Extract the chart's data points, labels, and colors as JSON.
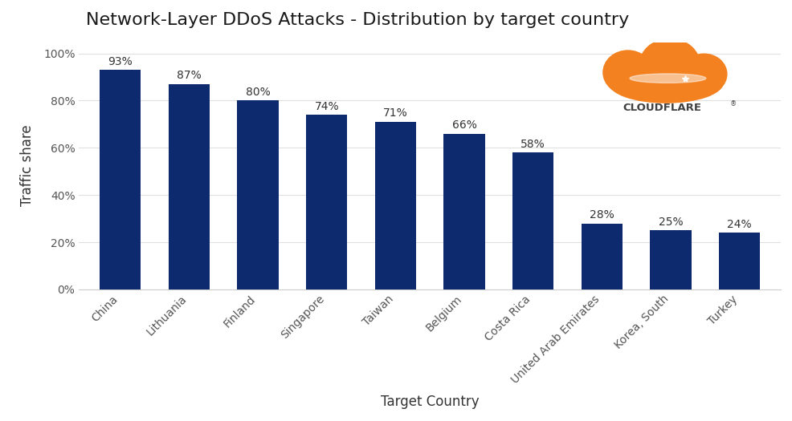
{
  "title": "Network-Layer DDoS Attacks - Distribution by target country",
  "xlabel": "Target Country",
  "ylabel": "Traffic share",
  "categories": [
    "China",
    "Lithuania",
    "Finland",
    "Singapore",
    "Taiwan",
    "Belgium",
    "Costa Rica",
    "United Arab Emirates",
    "Korea, South",
    "Turkey"
  ],
  "values": [
    93,
    87,
    80,
    74,
    71,
    66,
    58,
    28,
    25,
    24
  ],
  "bar_color": "#0e2a6e",
  "background_color": "#ffffff",
  "ylim": [
    0,
    105
  ],
  "ytick_labels": [
    "0%",
    "20%",
    "40%",
    "60%",
    "80%",
    "100%"
  ],
  "ytick_values": [
    0,
    20,
    40,
    60,
    80,
    100
  ],
  "title_fontsize": 16,
  "axis_label_fontsize": 12,
  "tick_label_fontsize": 10,
  "bar_label_fontsize": 10,
  "grid_color": "#e0e0e0",
  "cloudflare_text_color": "#404040",
  "cloudflare_orange": "#f4811f"
}
